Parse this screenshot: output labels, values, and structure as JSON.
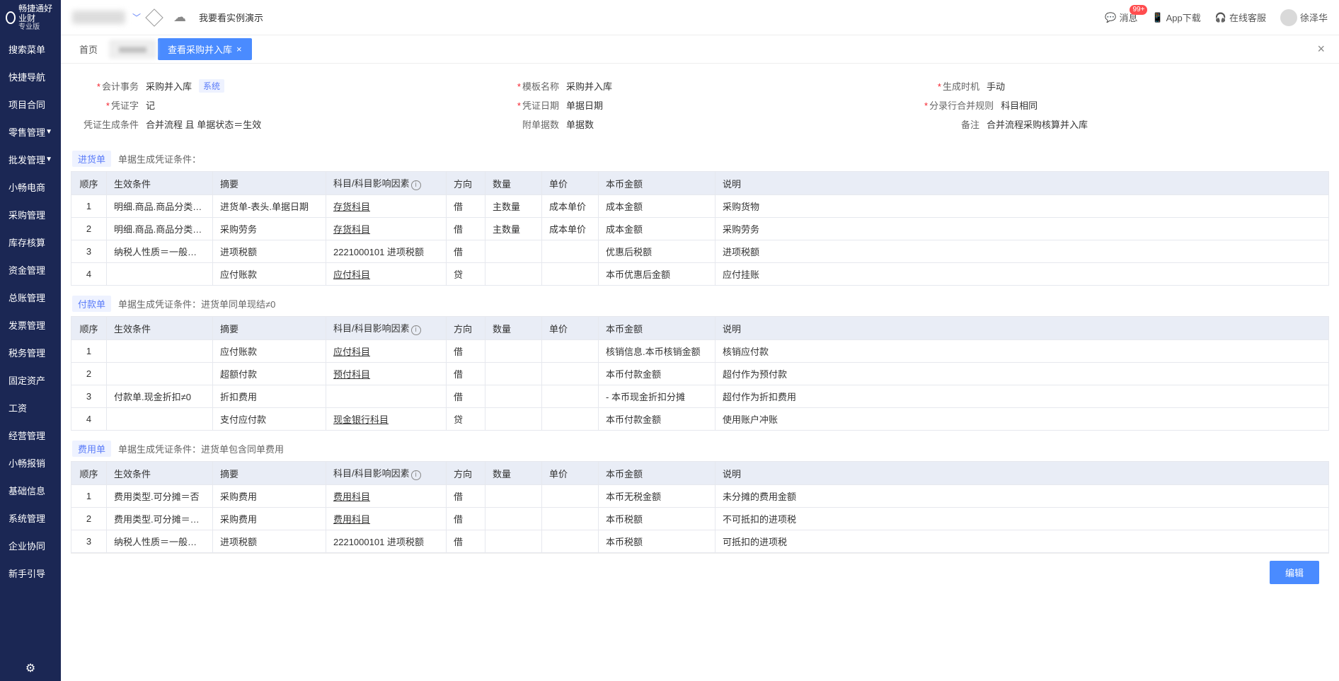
{
  "brand": {
    "name": "畅捷通好业财",
    "edition": "专业版"
  },
  "sidebar": [
    {
      "label": "搜索菜单"
    },
    {
      "label": "快捷导航"
    },
    {
      "label": "项目合同"
    },
    {
      "label": "零售管理",
      "caret": true
    },
    {
      "label": "批发管理",
      "caret": true
    },
    {
      "label": "小畅电商"
    },
    {
      "label": "采购管理"
    },
    {
      "label": "库存核算"
    },
    {
      "label": "资金管理"
    },
    {
      "label": "总账管理"
    },
    {
      "label": "发票管理"
    },
    {
      "label": "税务管理"
    },
    {
      "label": "固定资产"
    },
    {
      "label": "工资"
    },
    {
      "label": "经营管理"
    },
    {
      "label": "小畅报销"
    },
    {
      "label": "基础信息"
    },
    {
      "label": "系统管理"
    },
    {
      "label": "企业协同"
    },
    {
      "label": "新手引导"
    }
  ],
  "topbar": {
    "demo": "我要看实例演示",
    "msg": "消息",
    "badge": "99+",
    "app": "App下载",
    "cs": "在线客服",
    "user": "徐泽华"
  },
  "tabs": {
    "home": "首页",
    "active": "查看采购并入库"
  },
  "form": {
    "acc_label": "会计事务",
    "acc_val": "采购并入库",
    "sys": "系统",
    "tpl_label": "模板名称",
    "tpl_val": "采购并入库",
    "gen_label": "生成时机",
    "gen_val": "手动",
    "vch_label": "凭证字",
    "vch_val": "记",
    "date_label": "凭证日期",
    "date_val": "单据日期",
    "merge_label": "分录行合并规则",
    "merge_val": "科目相同",
    "cond_label": "凭证生成条件",
    "cond_val": "合并流程 且 单据状态＝生效",
    "att_label": "附单据数",
    "att_val": "单据数",
    "note_label": "备注",
    "note_val": "合并流程采购核算并入库"
  },
  "cols": {
    "seq": "顺序",
    "cond": "生效条件",
    "sum": "摘要",
    "sub": "科目/科目影响因素",
    "info": "i",
    "dir": "方向",
    "qty": "数量",
    "price": "单价",
    "amt": "本币金额",
    "desc": "说明"
  },
  "sections": [
    {
      "title": "进货单",
      "cond": "单据生成凭证条件：",
      "rows": [
        {
          "n": "1",
          "cond": "明细.商品.商品分类＝货物",
          "sum": "进货单-表头.单据日期",
          "sub": "存货科目",
          "sub_u": true,
          "dir": "借",
          "qty": "主数量",
          "price": "成本单价",
          "amt": "成本金额",
          "desc": "采购货物"
        },
        {
          "n": "2",
          "cond": "明细.商品.商品分类＝劳务",
          "sum": "采购劳务",
          "sub": "存货科目",
          "sub_u": true,
          "dir": "借",
          "qty": "主数量",
          "price": "成本单价",
          "amt": "成本金额",
          "desc": "采购劳务"
        },
        {
          "n": "3",
          "cond": "纳税人性质＝一般纳税人 且 支",
          "sum": "进项税额",
          "sub": "2221000101 进项税额",
          "dir": "借",
          "qty": "",
          "price": "",
          "amt": "优惠后税额",
          "desc": "进项税额"
        },
        {
          "n": "4",
          "cond": "",
          "sum": "应付账款",
          "sub": "应付科目",
          "sub_u": true,
          "dir": "贷",
          "qty": "",
          "price": "",
          "amt": "本币优惠后金额",
          "desc": "应付挂账"
        }
      ]
    },
    {
      "title": "付款单",
      "cond": "单据生成凭证条件：进货单同单现结≠0",
      "rows": [
        {
          "n": "1",
          "cond": "",
          "sum": "应付账款",
          "sub": "应付科目",
          "sub_u": true,
          "dir": "借",
          "qty": "",
          "price": "",
          "amt": "核销信息.本币核销金额",
          "desc": "核销应付款"
        },
        {
          "n": "2",
          "cond": "",
          "sum": "超额付款",
          "sub": "预付科目",
          "sub_u": true,
          "dir": "借",
          "qty": "",
          "price": "",
          "amt": "本币付款金额",
          "desc": "超付作为预付款"
        },
        {
          "n": "3",
          "cond": "付款单.现金折扣≠0",
          "sum": "折扣费用",
          "sub": "",
          "dir": "借",
          "qty": "",
          "price": "",
          "amt": "- 本币现金折扣分摊",
          "desc": "超付作为折扣费用"
        },
        {
          "n": "4",
          "cond": "",
          "sum": "支付应付款",
          "sub": "现金银行科目",
          "sub_u": true,
          "dir": "贷",
          "qty": "",
          "price": "",
          "amt": "本币付款金额",
          "desc": "使用账户冲账"
        }
      ]
    },
    {
      "title": "费用单",
      "cond": "单据生成凭证条件：进货单包含同单费用",
      "rows": [
        {
          "n": "1",
          "cond": "费用类型.可分摊＝否",
          "sum": "采购费用",
          "sub": "费用科目",
          "sub_u": true,
          "dir": "借",
          "qty": "",
          "price": "",
          "amt": "本币无税金额",
          "desc": "未分摊的费用金额"
        },
        {
          "n": "2",
          "cond": "费用类型.可分摊＝否 且 (纳税",
          "sum": "采购费用",
          "sub": "费用科目",
          "sub_u": true,
          "dir": "借",
          "qty": "",
          "price": "",
          "amt": "本币税额",
          "desc": "不可抵扣的进项税"
        },
        {
          "n": "3",
          "cond": "纳税人性质＝一般纳税人 且 (",
          "sum": "进项税额",
          "sub": "2221000101 进项税额",
          "dir": "借",
          "qty": "",
          "price": "",
          "amt": "本币税额",
          "desc": "可抵扣的进项税"
        }
      ]
    }
  ],
  "footer": {
    "edit": "编辑"
  }
}
